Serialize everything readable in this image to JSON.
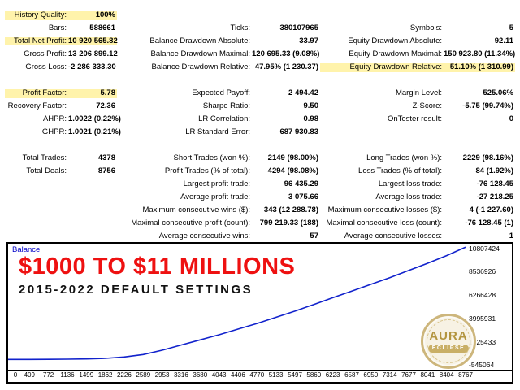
{
  "stats": {
    "highlight_color": "#fff3ab",
    "rows": [
      {
        "cells": [
          {
            "l": "History Quality:",
            "v": "100%",
            "hl": true
          },
          {},
          {}
        ]
      },
      {
        "cells": [
          {
            "l": "Bars:",
            "v": "588661"
          },
          {
            "l": "Ticks:",
            "v": "380107965"
          },
          {
            "l": "Symbols:",
            "v": "5"
          }
        ]
      },
      {
        "cells": [
          {
            "l": "Total Net Profit:",
            "v": "10 920 565.82",
            "hl": true
          },
          {
            "l": "Balance Drawdown Absolute:",
            "v": "33.97"
          },
          {
            "l": "Equity Drawdown Absolute:",
            "v": "92.11"
          }
        ]
      },
      {
        "cells": [
          {
            "l": "Gross Profit:",
            "v": "13 206 899.12"
          },
          {
            "l": "Balance Drawdown Maximal:",
            "v": "120 695.33 (9.08%)"
          },
          {
            "l": "Equity Drawdown Maximal:",
            "v": "150 923.80 (11.34%)"
          }
        ]
      },
      {
        "cells": [
          {
            "l": "Gross Loss:",
            "v": "-2 286 333.30"
          },
          {
            "l": "Balance Drawdown Relative:",
            "v": "47.95% (1 230.37)"
          },
          {
            "l": "Equity Drawdown Relative:",
            "v": "51.10% (1 310.99)",
            "hl": true
          }
        ]
      },
      {
        "spacer": true
      },
      {
        "cells": [
          {
            "l": "Profit Factor:",
            "v": "5.78",
            "hl": true
          },
          {
            "l": "Expected Payoff:",
            "v": "2 494.42"
          },
          {
            "l": "Margin Level:",
            "v": "525.06%"
          }
        ]
      },
      {
        "cells": [
          {
            "l": "Recovery Factor:",
            "v": "72.36"
          },
          {
            "l": "Sharpe Ratio:",
            "v": "9.50"
          },
          {
            "l": "Z-Score:",
            "v": "-5.75 (99.74%)"
          }
        ]
      },
      {
        "cells": [
          {
            "l": "AHPR:",
            "v": "1.0022 (0.22%)"
          },
          {
            "l": "LR Correlation:",
            "v": "0.98"
          },
          {
            "l": "OnTester result:",
            "v": "0"
          }
        ]
      },
      {
        "cells": [
          {
            "l": "GHPR:",
            "v": "1.0021 (0.21%)"
          },
          {
            "l": "LR Standard Error:",
            "v": "687 930.83"
          },
          {}
        ]
      },
      {
        "spacer": true
      },
      {
        "cells": [
          {
            "l": "Total Trades:",
            "v": "4378"
          },
          {
            "l": "Short Trades (won %):",
            "v": "2149 (98.00%)"
          },
          {
            "l": "Long Trades (won %):",
            "v": "2229 (98.16%)"
          }
        ]
      },
      {
        "cells": [
          {
            "l": "Total Deals:",
            "v": "8756"
          },
          {
            "l": "Profit Trades (% of total):",
            "v": "4294 (98.08%)"
          },
          {
            "l": "Loss Trades (% of total):",
            "v": "84 (1.92%)"
          }
        ]
      },
      {
        "cells": [
          {},
          {
            "l": "Largest profit trade:",
            "v": "96 435.29"
          },
          {
            "l": "Largest loss trade:",
            "v": "-76 128.45"
          }
        ]
      },
      {
        "cells": [
          {},
          {
            "l": "Average profit trade:",
            "v": "3 075.66"
          },
          {
            "l": "Average loss trade:",
            "v": "-27 218.25"
          }
        ]
      },
      {
        "cells": [
          {},
          {
            "l": "Maximum consecutive wins ($):",
            "v": "343 (12 288.78)"
          },
          {
            "l": "Maximum consecutive losses ($):",
            "v": "4 (-1 227.60)"
          }
        ]
      },
      {
        "cells": [
          {},
          {
            "l": "Maximal consecutive profit (count):",
            "v": "799 219.33 (188)"
          },
          {
            "l": "Maximal consecutive loss (count):",
            "v": "-76 128.45 (1)"
          }
        ]
      },
      {
        "cells": [
          {},
          {
            "l": "Average consecutive wins:",
            "v": "57"
          },
          {
            "l": "Average consecutive losses:",
            "v": "1"
          }
        ]
      }
    ]
  },
  "overlay": {
    "line1": "$1000 TO $11 MILLIONS",
    "line2": "2015-2022 DEFAULT SETTINGS",
    "line1_color": "#ee1111"
  },
  "watermark": {
    "line1": "AURA",
    "line2": "ECLIPSE"
  },
  "chart_data": {
    "type": "line",
    "title": "Balance",
    "legend": "Balance",
    "line_color": "#1122cc",
    "x_ticks": [
      0,
      409,
      772,
      1136,
      1499,
      1862,
      2226,
      2589,
      2953,
      3316,
      3680,
      4043,
      4406,
      4770,
      5133,
      5497,
      5860,
      6223,
      6587,
      6950,
      7314,
      7677,
      8041,
      8404,
      8767
    ],
    "y_ticks": [
      10807424,
      8536926,
      6266428,
      3995931,
      1725433,
      -545064
    ],
    "ylim": [
      -1000000,
      11250000
    ],
    "xlim": [
      0,
      8767
    ],
    "series": [
      {
        "name": "Balance",
        "x": [
          0,
          409,
          772,
          1136,
          1499,
          1862,
          2226,
          2589,
          2953,
          3316,
          3680,
          4043,
          4406,
          4770,
          5133,
          5497,
          5860,
          6223,
          6587,
          6950,
          7314,
          7677,
          8041,
          8404,
          8767
        ],
        "values": [
          1000,
          4000,
          12000,
          25000,
          50000,
          110000,
          240000,
          480000,
          900000,
          1400000,
          1900000,
          2400000,
          2950000,
          3500000,
          4100000,
          4700000,
          5350000,
          6000000,
          6650000,
          7300000,
          7950000,
          8650000,
          9350000,
          10100000,
          10920566
        ]
      }
    ]
  }
}
